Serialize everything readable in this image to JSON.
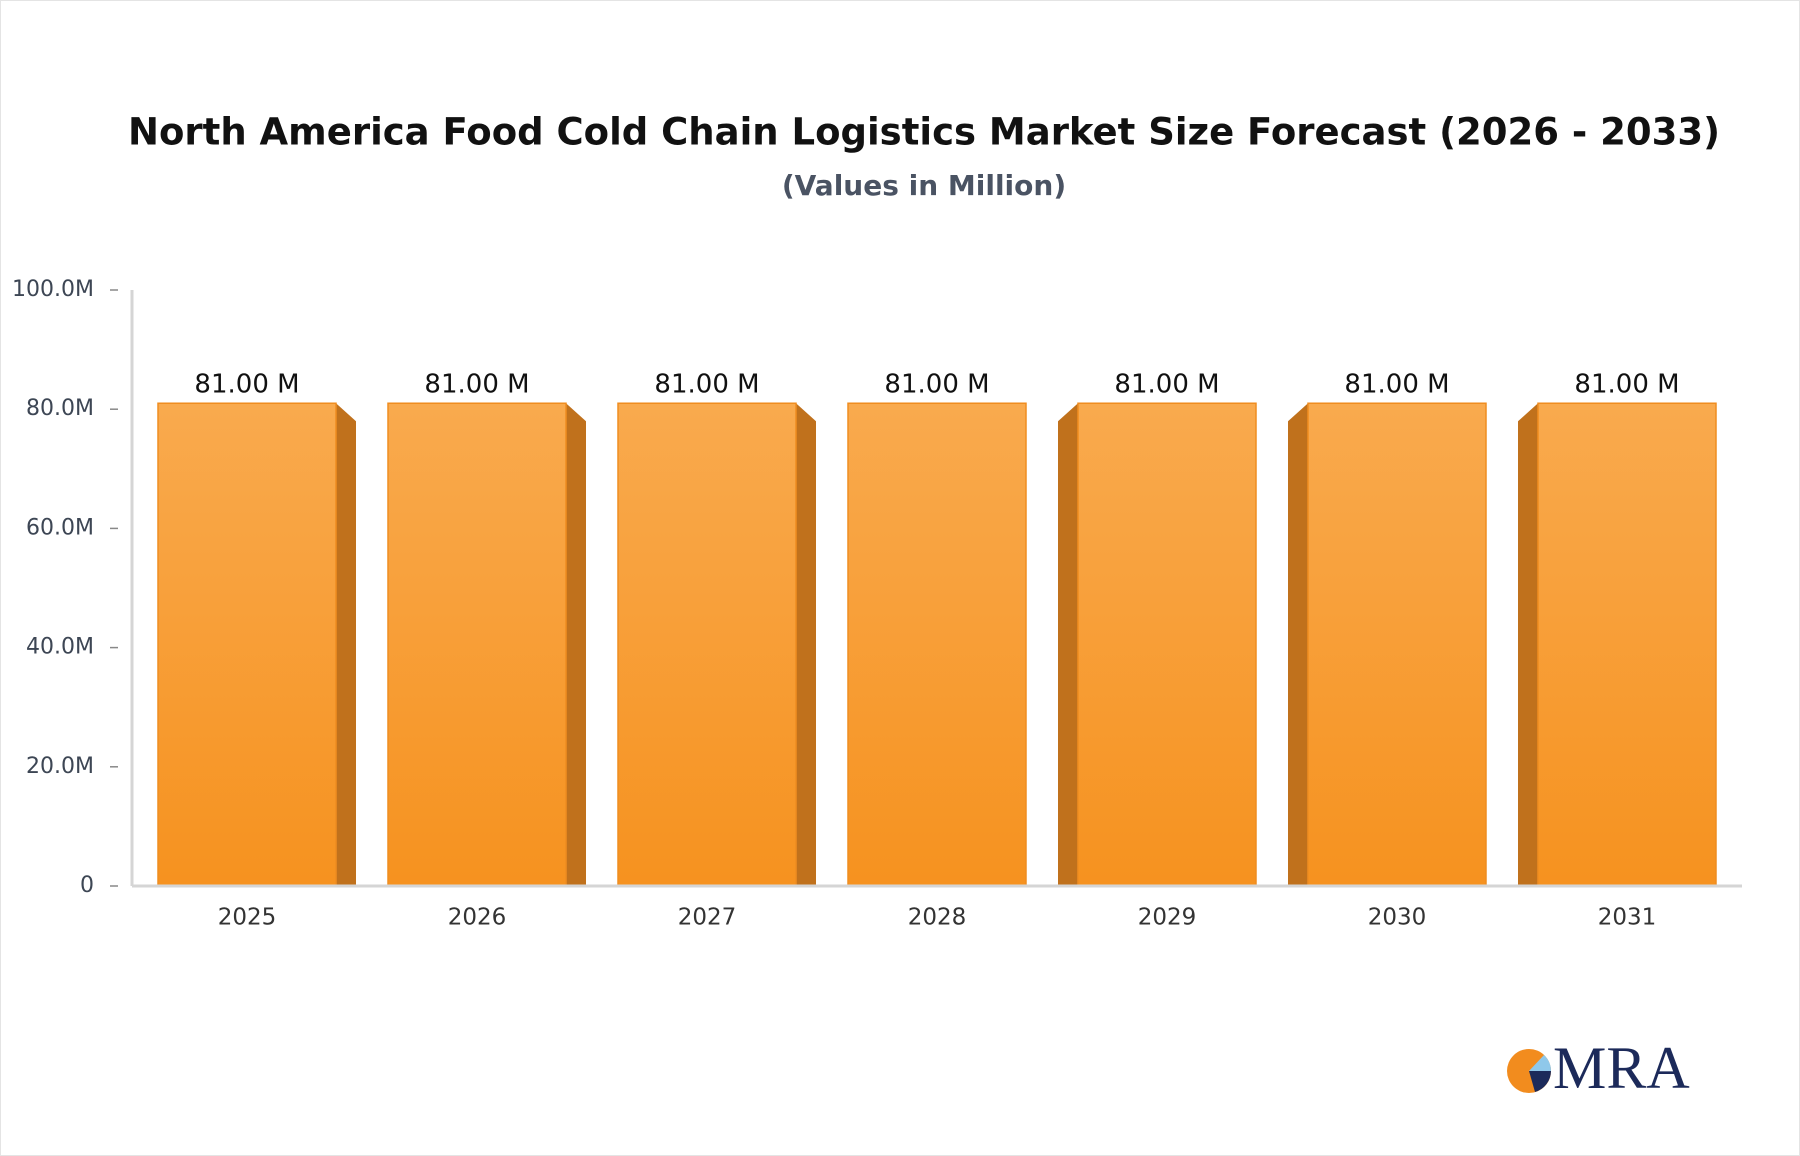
{
  "chart_data": {
    "type": "bar",
    "title": "North America Food Cold Chain Logistics Market Size Forecast (2026 - 2033)",
    "subtitle": "(Values in Million)",
    "categories": [
      "2025",
      "2026",
      "2027",
      "2028",
      "2029",
      "2030",
      "2031"
    ],
    "values": [
      81,
      81,
      81,
      81,
      81,
      81,
      81
    ],
    "value_labels": [
      "81.00 M",
      "81.00 M",
      "81.00 M",
      "81.00 M",
      "81.00 M",
      "81.00 M",
      "81.00 M"
    ],
    "color": "#f7a03a",
    "ylim": [
      0,
      100
    ],
    "yticks": [
      0,
      {
        "value": 20,
        "label": "20.0M"
      },
      {
        "value": 40,
        "label": "40.0M"
      },
      {
        "value": 60,
        "label": "60.0M"
      },
      {
        "value": 80,
        "label": "80.0M"
      },
      {
        "value": 100,
        "label": "100.0M"
      }
    ]
  },
  "logo": "MRA"
}
